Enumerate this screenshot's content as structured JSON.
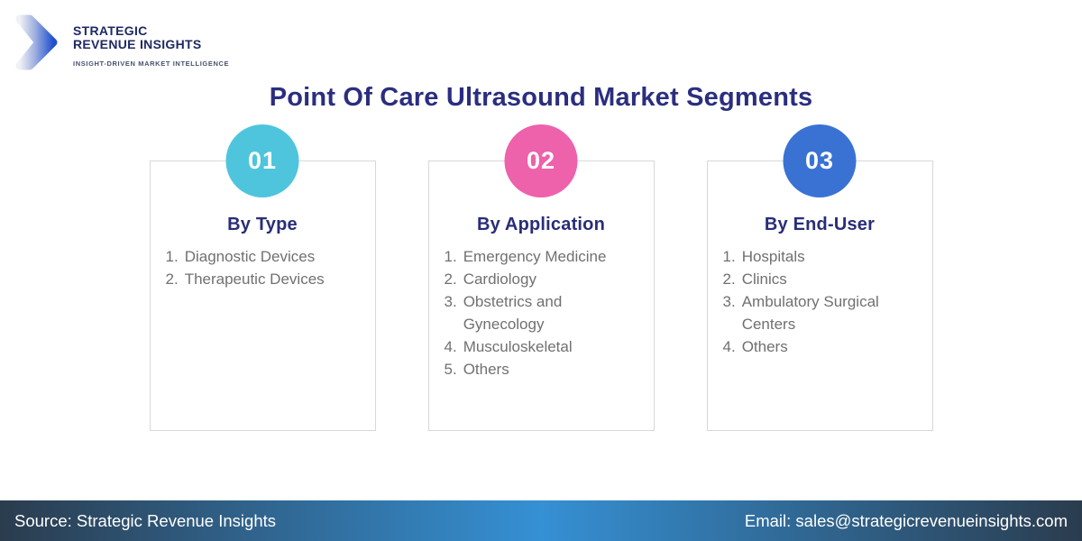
{
  "logo": {
    "line1": "STRATEGIC",
    "line2": "REVENUE INSIGHTS",
    "tagline": "INSIGHT-DRIVEN MARKET INTELLIGENCE",
    "chevron_colors": {
      "start": "#f0f1f5",
      "end": "#2050d0"
    },
    "text_color": "#1f2a63"
  },
  "title": {
    "text": "Point Of Care Ultrasound Market Segments",
    "color": "#2b2e7f"
  },
  "cards": [
    {
      "number": "01",
      "badge_color": "#4ec5dd",
      "heading": "By Type",
      "items": [
        "Diagnostic Devices",
        "Therapeutic Devices"
      ]
    },
    {
      "number": "02",
      "badge_color": "#ee61ab",
      "heading": "By Application",
      "items": [
        "Emergency Medicine",
        "Cardiology",
        "Obstetrics and Gynecology",
        "Musculoskeletal",
        "Others"
      ]
    },
    {
      "number": "03",
      "badge_color": "#3a72d4",
      "heading": "By End-User",
      "items": [
        "Hospitals",
        "Clinics",
        "Ambulatory Surgical Centers",
        "Others"
      ]
    }
  ],
  "footer": {
    "source": "Source: Strategic Revenue Insights",
    "email": "Email: sales@strategicrevenueinsights.com",
    "gradient": [
      "#2b3c4e",
      "#3590d4",
      "#2b3c4e"
    ],
    "text_color": "#ffffff"
  }
}
